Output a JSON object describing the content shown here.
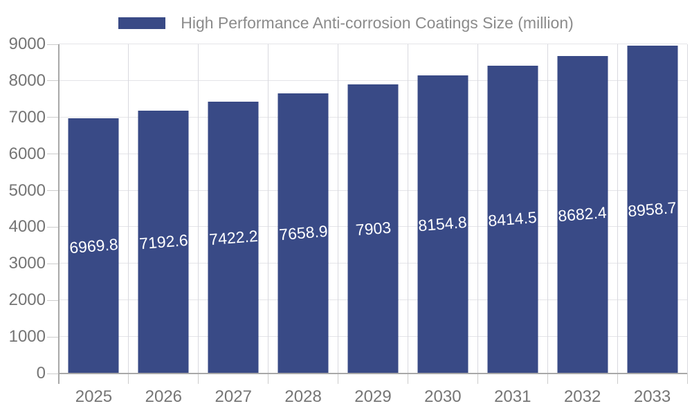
{
  "chart_data": {
    "type": "bar",
    "title": "High Performance Anti-corrosion Coatings Size (million)",
    "legend_position": "top",
    "categories": [
      "2025",
      "2026",
      "2027",
      "2028",
      "2029",
      "2030",
      "2031",
      "2032",
      "2033"
    ],
    "values": [
      6969.8,
      7192.6,
      7422.2,
      7658.9,
      7903,
      8154.8,
      8414.5,
      8682.4,
      8958.7
    ],
    "value_labels": [
      "6969.8",
      "7192.6",
      "7422.2",
      "7658.9",
      "7903",
      "8154.8",
      "8414.5",
      "8682.4",
      "8958.7"
    ],
    "xlabel": "",
    "ylabel": "",
    "ylim": [
      0,
      9000
    ],
    "yticks": [
      0,
      1000,
      2000,
      3000,
      4000,
      5000,
      6000,
      7000,
      8000,
      9000
    ],
    "ytick_labels": [
      "0",
      "1000",
      "2000",
      "3000",
      "4000",
      "5000",
      "6000",
      "7000",
      "8000",
      "9000"
    ],
    "grid": true,
    "colors": {
      "bar": "#394a86",
      "value_label": "#ffffff",
      "axis_label": "#757575",
      "legend_text": "#8b8b8b",
      "gridline": "#e4e4e8",
      "boundary_line": "#d9d9df",
      "axis_line": "#a8a8a8",
      "tick": "#cccccc"
    }
  }
}
